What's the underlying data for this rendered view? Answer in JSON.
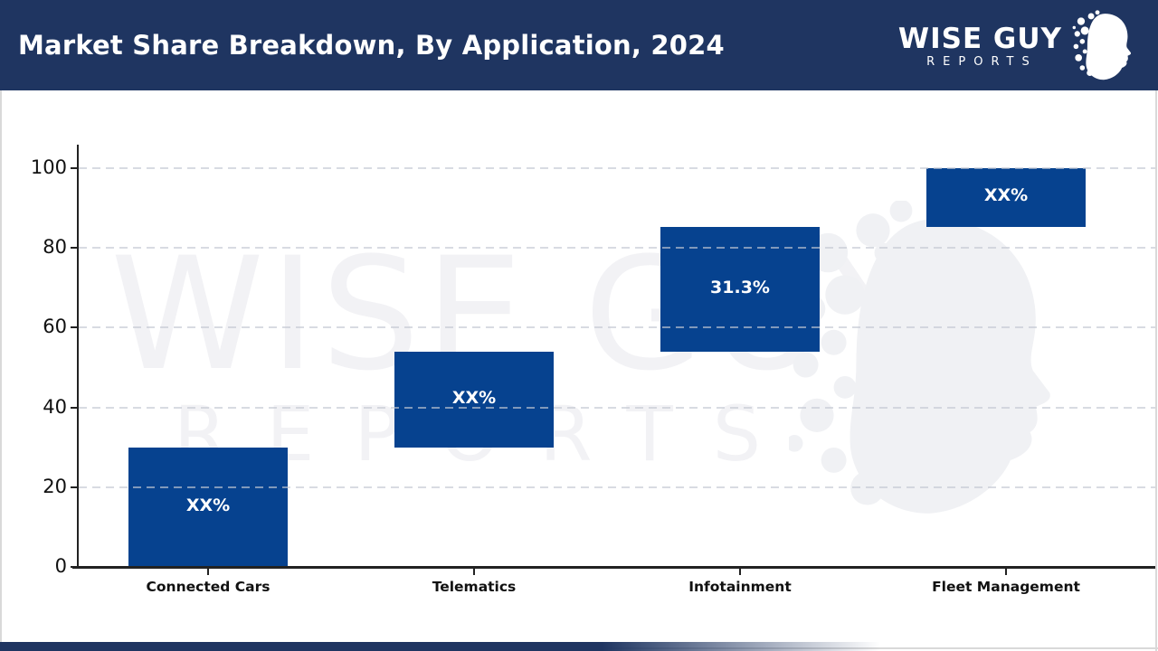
{
  "header": {
    "title": "Market Share Breakdown, By Application, 2024",
    "logo": {
      "line1": "WISE GUY",
      "line2": "REPORTS"
    }
  },
  "watermark": {
    "line1": "WISE GUY",
    "line2": "REPORTS"
  },
  "chart_data": {
    "type": "bar",
    "subtype": "waterfall",
    "title": "Market Share Breakdown, By Application, 2024",
    "categories": [
      "Connected Cars",
      "Telematics",
      "Infotainment",
      "Fleet Management"
    ],
    "segments": [
      {
        "category": "Connected Cars",
        "start": 0,
        "end": 30,
        "label": "XX%"
      },
      {
        "category": "Telematics",
        "start": 30,
        "end": 54,
        "label": "XX%"
      },
      {
        "category": "Infotainment",
        "start": 54,
        "end": 85.3,
        "label": "31.3%"
      },
      {
        "category": "Fleet Management",
        "start": 85.3,
        "end": 100,
        "label": "XX%"
      }
    ],
    "ylim": [
      0,
      100
    ],
    "yticks": [
      0,
      20,
      40,
      60,
      80,
      100
    ],
    "grid": "horizontal-dashed",
    "legend": "none",
    "bar_color": "#06428f",
    "bar_label_color": "#ffffff",
    "axis_color": "#222222",
    "header_color": "#1f3561",
    "gridline_color": "#d9d9d9"
  }
}
